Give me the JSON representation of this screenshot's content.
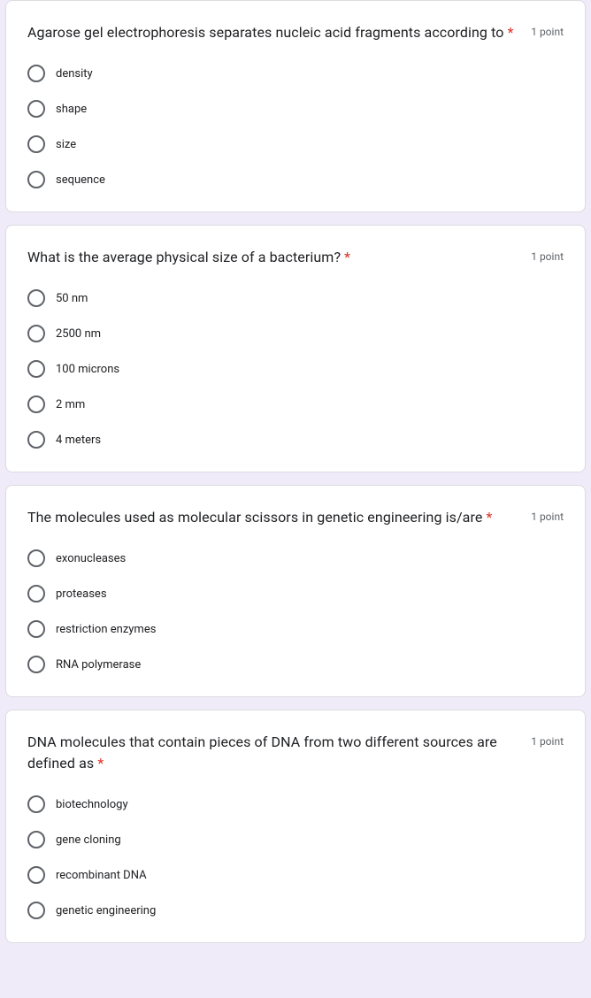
{
  "points_label": "1 point",
  "required_marker": "*",
  "questions": [
    {
      "text": "Agarose gel electrophoresis separates nucleic acid fragments according to ",
      "options": [
        "density",
        "shape",
        "size",
        "sequence"
      ]
    },
    {
      "text": "What is the average physical size of a bacterium? ",
      "options": [
        "50 nm",
        "2500 nm",
        "100 microns",
        "2 mm",
        "4 meters"
      ]
    },
    {
      "text": "The molecules used as molecular scissors in genetic engineering is/are ",
      "options": [
        "exonucleases",
        "proteases",
        "restriction enzymes",
        "RNA polymerase"
      ]
    },
    {
      "text": "DNA molecules that contain pieces of DNA from two different sources are defined as ",
      "options": [
        "biotechnology",
        "gene cloning",
        "recombinant DNA",
        "genetic engineering"
      ]
    }
  ],
  "colors": {
    "page_bg": "#f0ebf8",
    "card_bg": "#ffffff",
    "card_border": "#dadce0",
    "text_primary": "#202124",
    "text_secondary": "#5f6368",
    "required": "#d93025",
    "radio_border": "#5f6368"
  }
}
